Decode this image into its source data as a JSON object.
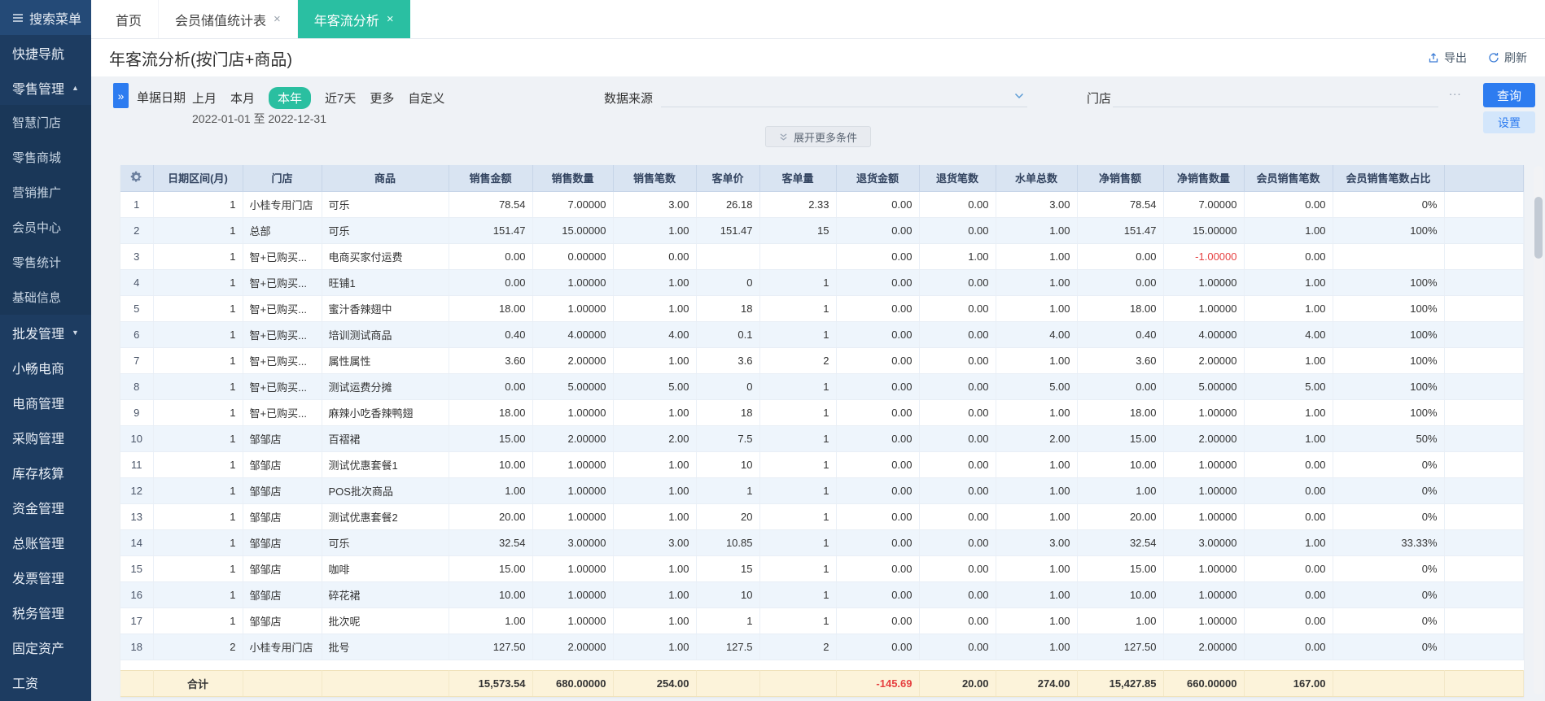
{
  "colors": {
    "sidebar_bg": "#1d3c61",
    "accent_green": "#2abfa0",
    "accent_blue": "#2d7cf0",
    "negative_red": "#e64040",
    "table_header_bg": "#d9e4f2",
    "total_row_bg": "#fcf3da"
  },
  "icons": {
    "close": "×",
    "collapse": "»",
    "menu": "hamburger",
    "gear": "gear",
    "export": "arrow-up-tray",
    "refresh": "circular-arrow",
    "dropdown": "chevron-down",
    "expand_more": "double-chevron-down"
  },
  "sidebar": {
    "items": [
      {
        "label": "搜索菜单",
        "icon": "menu"
      },
      {
        "label": "快捷导航"
      },
      {
        "label": "零售管理",
        "arrow": "up"
      },
      {
        "label": "智慧门店",
        "sub": true
      },
      {
        "label": "零售商城",
        "sub": true
      },
      {
        "label": "营销推广",
        "sub": true
      },
      {
        "label": "会员中心",
        "sub": true
      },
      {
        "label": "零售统计",
        "sub": true
      },
      {
        "label": "基础信息",
        "sub": true
      },
      {
        "label": "批发管理",
        "arrow": "down"
      },
      {
        "label": "小畅电商"
      },
      {
        "label": "电商管理"
      },
      {
        "label": "采购管理"
      },
      {
        "label": "库存核算"
      },
      {
        "label": "资金管理"
      },
      {
        "label": "总账管理"
      },
      {
        "label": "发票管理"
      },
      {
        "label": "税务管理"
      },
      {
        "label": "固定资产"
      },
      {
        "label": "工资"
      }
    ]
  },
  "tabs": [
    {
      "label": "首页",
      "closable": false,
      "active": false
    },
    {
      "label": "会员储值统计表",
      "closable": true,
      "active": false
    },
    {
      "label": "年客流分析",
      "closable": true,
      "active": true
    }
  ],
  "header": {
    "title": "年客流分析(按门店+商品)",
    "export_label": "导出",
    "refresh_label": "刷新"
  },
  "filters": {
    "date_label": "单据日期",
    "quick_options": [
      "上月",
      "本月",
      "本年",
      "近7天",
      "更多",
      "自定义"
    ],
    "selected_quick": "本年",
    "date_range": "2022-01-01 至 2022-12-31",
    "source_label": "数据来源",
    "store_label": "门店",
    "store_more": "...",
    "query_label": "查询",
    "settings_label": "设置",
    "expand_label": "展开更多条件"
  },
  "table": {
    "columns": [
      "日期区间(月)",
      "门店",
      "商品",
      "销售金额",
      "销售数量",
      "销售笔数",
      "客单价",
      "客单量",
      "退货金额",
      "退货笔数",
      "水单总数",
      "净销售额",
      "净销售数量",
      "会员销售笔数",
      "会员销售笔数占比"
    ],
    "rows": [
      {
        "num": "1",
        "cells": [
          "1",
          "小桂专用门店",
          "可乐",
          "78.54",
          "7.00000",
          "3.00",
          "26.18",
          "2.33",
          "0.00",
          "0.00",
          "3.00",
          "78.54",
          "7.00000",
          "0.00",
          "0%"
        ]
      },
      {
        "num": "2",
        "cells": [
          "1",
          "总部",
          "可乐",
          "151.47",
          "15.00000",
          "1.00",
          "151.47",
          "15",
          "0.00",
          "0.00",
          "1.00",
          "151.47",
          "15.00000",
          "1.00",
          "100%"
        ]
      },
      {
        "num": "3",
        "cells": [
          "1",
          "智+已购买...",
          "电商买家付运费",
          "0.00",
          "0.00000",
          "0.00",
          "",
          "",
          "0.00",
          "1.00",
          "1.00",
          "0.00",
          "-1.00000",
          "0.00",
          ""
        ]
      },
      {
        "num": "4",
        "cells": [
          "1",
          "智+已购买...",
          "旺铺1",
          "0.00",
          "1.00000",
          "1.00",
          "0",
          "1",
          "0.00",
          "0.00",
          "1.00",
          "0.00",
          "1.00000",
          "1.00",
          "100%"
        ]
      },
      {
        "num": "5",
        "cells": [
          "1",
          "智+已购买...",
          "蜜汁香辣翅中",
          "18.00",
          "1.00000",
          "1.00",
          "18",
          "1",
          "0.00",
          "0.00",
          "1.00",
          "18.00",
          "1.00000",
          "1.00",
          "100%"
        ]
      },
      {
        "num": "6",
        "cells": [
          "1",
          "智+已购买...",
          "培训测试商品",
          "0.40",
          "4.00000",
          "4.00",
          "0.1",
          "1",
          "0.00",
          "0.00",
          "4.00",
          "0.40",
          "4.00000",
          "4.00",
          "100%"
        ]
      },
      {
        "num": "7",
        "cells": [
          "1",
          "智+已购买...",
          "属性属性",
          "3.60",
          "2.00000",
          "1.00",
          "3.6",
          "2",
          "0.00",
          "0.00",
          "1.00",
          "3.60",
          "2.00000",
          "1.00",
          "100%"
        ]
      },
      {
        "num": "8",
        "cells": [
          "1",
          "智+已购买...",
          "测试运费分摊",
          "0.00",
          "5.00000",
          "5.00",
          "0",
          "1",
          "0.00",
          "0.00",
          "5.00",
          "0.00",
          "5.00000",
          "5.00",
          "100%"
        ]
      },
      {
        "num": "9",
        "cells": [
          "1",
          "智+已购买...",
          "麻辣小吃香辣鸭翅",
          "18.00",
          "1.00000",
          "1.00",
          "18",
          "1",
          "0.00",
          "0.00",
          "1.00",
          "18.00",
          "1.00000",
          "1.00",
          "100%"
        ]
      },
      {
        "num": "10",
        "cells": [
          "1",
          "邹邹店",
          "百褶裙",
          "15.00",
          "2.00000",
          "2.00",
          "7.5",
          "1",
          "0.00",
          "0.00",
          "2.00",
          "15.00",
          "2.00000",
          "1.00",
          "50%"
        ]
      },
      {
        "num": "11",
        "cells": [
          "1",
          "邹邹店",
          "测试优惠套餐1",
          "10.00",
          "1.00000",
          "1.00",
          "10",
          "1",
          "0.00",
          "0.00",
          "1.00",
          "10.00",
          "1.00000",
          "0.00",
          "0%"
        ]
      },
      {
        "num": "12",
        "cells": [
          "1",
          "邹邹店",
          "POS批次商品",
          "1.00",
          "1.00000",
          "1.00",
          "1",
          "1",
          "0.00",
          "0.00",
          "1.00",
          "1.00",
          "1.00000",
          "0.00",
          "0%"
        ]
      },
      {
        "num": "13",
        "cells": [
          "1",
          "邹邹店",
          "测试优惠套餐2",
          "20.00",
          "1.00000",
          "1.00",
          "20",
          "1",
          "0.00",
          "0.00",
          "1.00",
          "20.00",
          "1.00000",
          "0.00",
          "0%"
        ]
      },
      {
        "num": "14",
        "cells": [
          "1",
          "邹邹店",
          "可乐",
          "32.54",
          "3.00000",
          "3.00",
          "10.85",
          "1",
          "0.00",
          "0.00",
          "3.00",
          "32.54",
          "3.00000",
          "1.00",
          "33.33%"
        ]
      },
      {
        "num": "15",
        "cells": [
          "1",
          "邹邹店",
          "咖啡",
          "15.00",
          "1.00000",
          "1.00",
          "15",
          "1",
          "0.00",
          "0.00",
          "1.00",
          "15.00",
          "1.00000",
          "0.00",
          "0%"
        ]
      },
      {
        "num": "16",
        "cells": [
          "1",
          "邹邹店",
          "碎花裙",
          "10.00",
          "1.00000",
          "1.00",
          "10",
          "1",
          "0.00",
          "0.00",
          "1.00",
          "10.00",
          "1.00000",
          "0.00",
          "0%"
        ]
      },
      {
        "num": "17",
        "cells": [
          "1",
          "邹邹店",
          "批次呢",
          "1.00",
          "1.00000",
          "1.00",
          "1",
          "1",
          "0.00",
          "0.00",
          "1.00",
          "1.00",
          "1.00000",
          "0.00",
          "0%"
        ]
      },
      {
        "num": "18",
        "cells": [
          "2",
          "小桂专用门店",
          "批号",
          "127.50",
          "2.00000",
          "1.00",
          "127.5",
          "2",
          "0.00",
          "0.00",
          "1.00",
          "127.50",
          "2.00000",
          "0.00",
          "0%"
        ]
      }
    ],
    "total_label": "合计",
    "total_cells": [
      "15,573.54",
      "680.00000",
      "254.00",
      "",
      "",
      "-145.69",
      "20.00",
      "274.00",
      "15,427.85",
      "660.00000",
      "167.00",
      ""
    ]
  }
}
